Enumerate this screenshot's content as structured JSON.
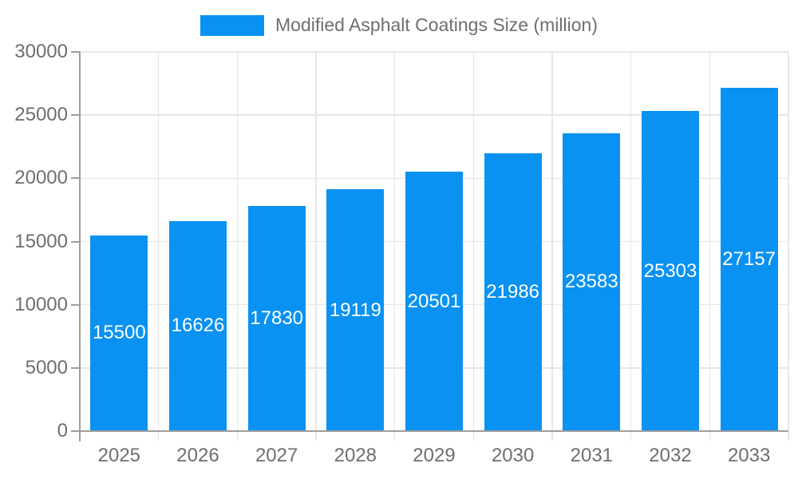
{
  "chart_data": {
    "type": "bar",
    "title": "",
    "legend_label": "Modified Asphalt Coatings Size (million)",
    "categories": [
      "2025",
      "2026",
      "2027",
      "2028",
      "2029",
      "2030",
      "2031",
      "2032",
      "2033"
    ],
    "values": [
      15500,
      16626,
      17830,
      19119,
      20501,
      21986,
      23583,
      25303,
      27157
    ],
    "xlabel": "",
    "ylabel": "",
    "ylim": [
      0,
      30000
    ],
    "yticks": [
      0,
      5000,
      10000,
      15000,
      20000,
      25000,
      30000
    ],
    "grid": true,
    "legend_position": "top",
    "value_labels_inside_bars": true,
    "colors": {
      "bar": "#0992f2",
      "value_label": "#ffffff",
      "axis_text": "#6e6e6e",
      "grid_line": "#e6e6e6",
      "axis_line": "#9e9e9e",
      "background": "#ffffff"
    }
  }
}
